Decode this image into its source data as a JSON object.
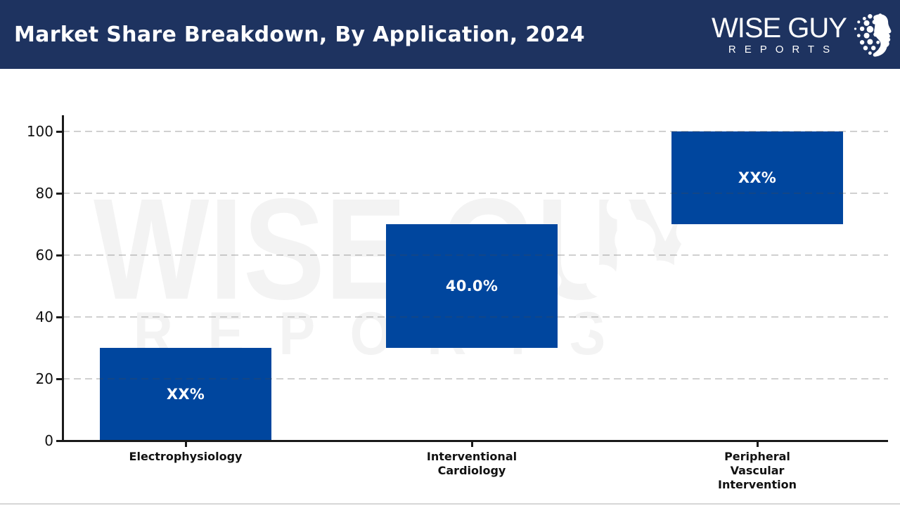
{
  "header": {
    "title": "Market Share Breakdown, By Application, 2024",
    "logo": {
      "primary": "WISE GUY",
      "secondary": "REPORTS"
    }
  },
  "watermark": {
    "primary": "WISE GUY",
    "secondary": "REPORTS"
  },
  "colors": {
    "header_bg": "#1e3360",
    "bar": "#00469e",
    "bar_label": "#ffffff",
    "axis": "#1a1a1a",
    "grid": "#d4d4d4",
    "watermark": "#f3f3f3"
  },
  "chart_data": {
    "type": "bar",
    "subtype": "stacked-waterfall-floating-segments",
    "title": "Market Share Breakdown, By Application, 2024",
    "categories": [
      [
        "Electrophysiology"
      ],
      [
        "Interventional",
        "Cardiology"
      ],
      [
        "Peripheral",
        "Vascular",
        "Intervention"
      ]
    ],
    "segments": [
      {
        "category": "Electrophysiology",
        "from": 0,
        "to": 30,
        "label": "XX%"
      },
      {
        "category": "Interventional Cardiology",
        "from": 30,
        "to": 70,
        "label": "40.0%"
      },
      {
        "category": "Peripheral Vascular Intervention",
        "from": 70,
        "to": 100,
        "label": "XX%"
      }
    ],
    "yticks": [
      0,
      20,
      40,
      60,
      80,
      100
    ],
    "ylim": [
      0,
      105
    ],
    "xlabel": "",
    "ylabel": "",
    "grid": "dashed-horizontal",
    "legend": "none"
  }
}
